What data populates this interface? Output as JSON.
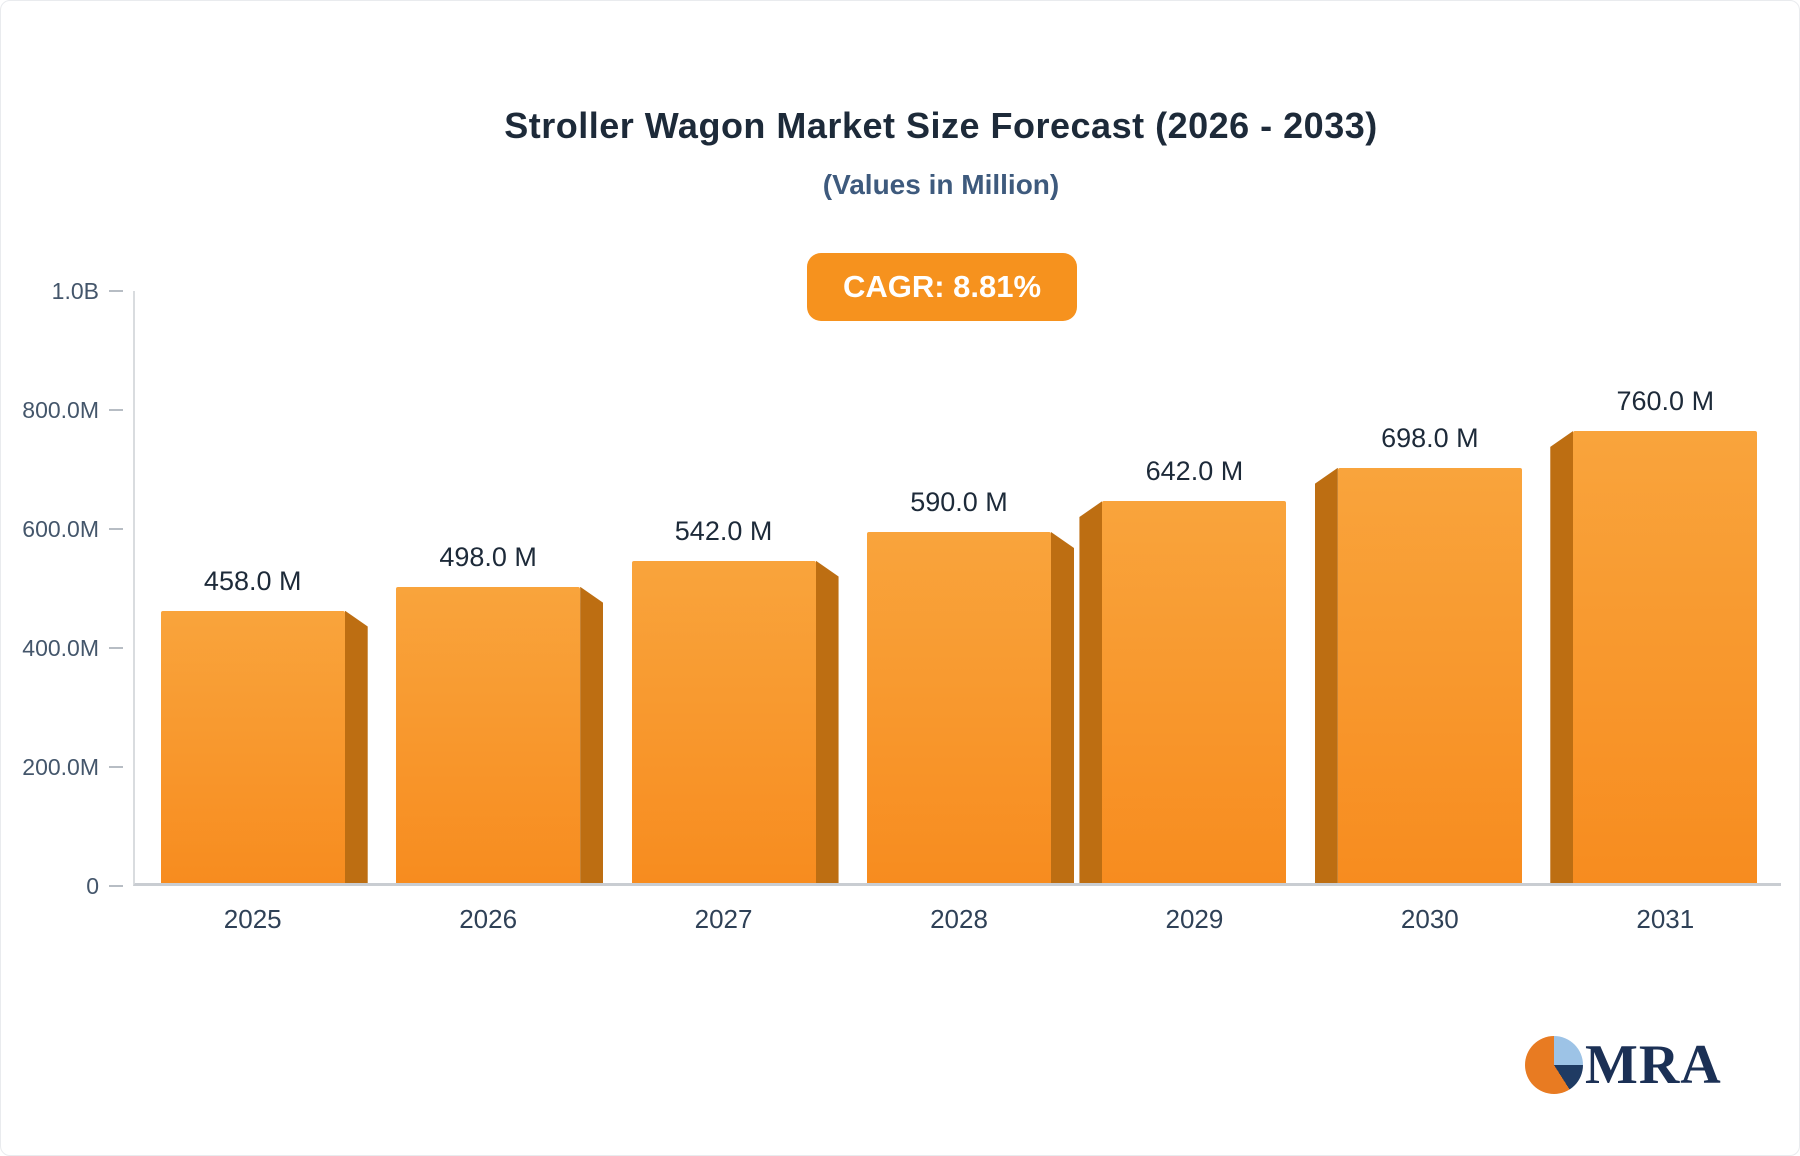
{
  "title": "Stroller Wagon Market Size Forecast (2026 - 2033)",
  "subtitle": "(Values in Million)",
  "badge": {
    "label": "CAGR: 8.81%"
  },
  "logo": {
    "text": "MRA"
  },
  "chart_data": {
    "type": "bar",
    "title": "Stroller Wagon Market Size Forecast (2026 - 2033)",
    "subtitle": "(Values in Million)",
    "cagr": "8.81%",
    "categories": [
      "2025",
      "2026",
      "2027",
      "2028",
      "2029",
      "2030",
      "2031"
    ],
    "values": [
      458.0,
      498.0,
      542.0,
      590.0,
      642.0,
      698.0,
      760.0
    ],
    "value_labels": [
      "458.0 M",
      "498.0 M",
      "542.0 M",
      "590.0 M",
      "642.0 M",
      "698.0 M",
      "760.0 M"
    ],
    "units": "Million",
    "y_ticks": [
      "1.0B",
      "800.0M",
      "600.0M",
      "400.0M",
      "200.0M",
      "0"
    ],
    "y_tick_values": [
      1000,
      800,
      600,
      400,
      200,
      0
    ],
    "ylim": [
      0,
      1000
    ],
    "xlabel": "",
    "ylabel": "",
    "grid": false,
    "legend": "none",
    "bar_color_top": "#f9a43c",
    "bar_color_bottom": "#f78c1f",
    "bar_side_color": "#bd6e12",
    "badge_color": "#f6921e"
  }
}
